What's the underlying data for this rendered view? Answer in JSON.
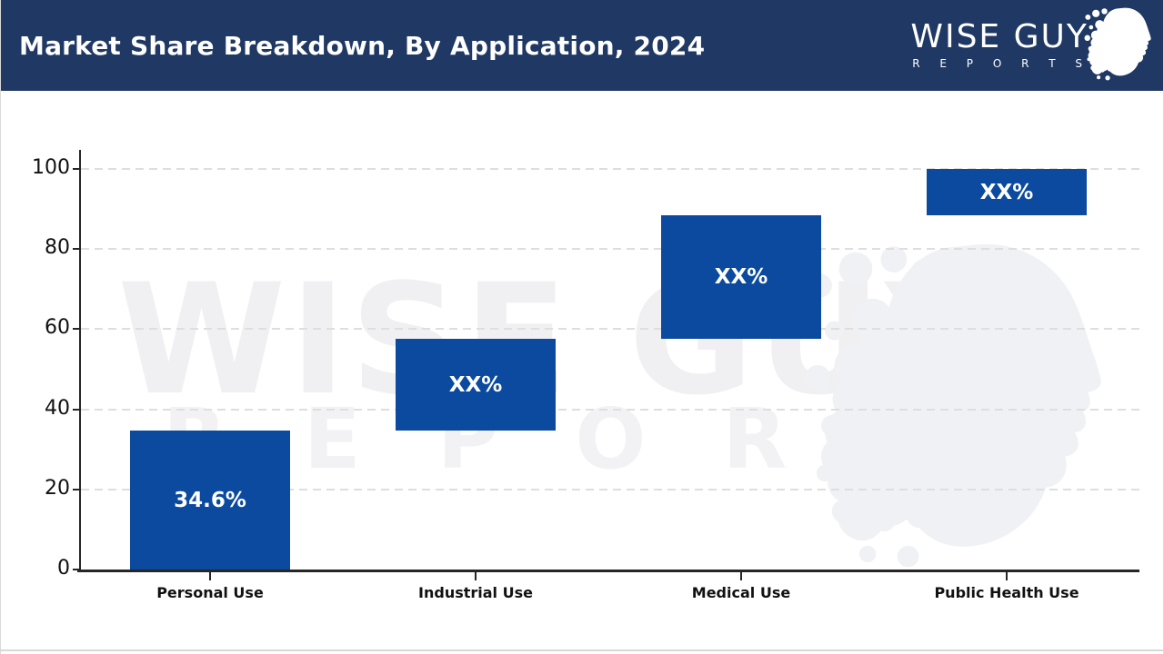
{
  "header": {
    "title": "Market Share Breakdown, By Application, 2024",
    "bg_color": "#1f3864",
    "logo": {
      "line1": "WISE GUY",
      "line2": "R E P O R T S"
    }
  },
  "watermark": {
    "line1": "WISE GUY",
    "line2": "R E P O R T S"
  },
  "chart_data": {
    "type": "bar",
    "subtype": "waterfall",
    "title": "Market Share Breakdown, By Application, 2024",
    "categories": [
      "Personal Use",
      "Industrial Use",
      "Medical Use",
      "Public Health Use"
    ],
    "segments": [
      {
        "category": "Personal Use",
        "start": 0,
        "end": 34.6,
        "label": "34.6%"
      },
      {
        "category": "Industrial Use",
        "start": 34.6,
        "end": 57.6,
        "label": "XX%"
      },
      {
        "category": "Medical Use",
        "start": 57.6,
        "end": 88.4,
        "label": "XX%"
      },
      {
        "category": "Public Health Use",
        "start": 88.4,
        "end": 100,
        "label": "XX%"
      }
    ],
    "values": [
      34.6,
      23.0,
      30.8,
      11.6
    ],
    "ylim": [
      0,
      100
    ],
    "yticks": [
      0,
      20,
      40,
      60,
      80,
      100
    ],
    "grid": "horizontal-dashed",
    "bar_color": "#0b4a9f",
    "label_color": "#ffffff",
    "axis_color": "#262626",
    "legend": "none"
  }
}
